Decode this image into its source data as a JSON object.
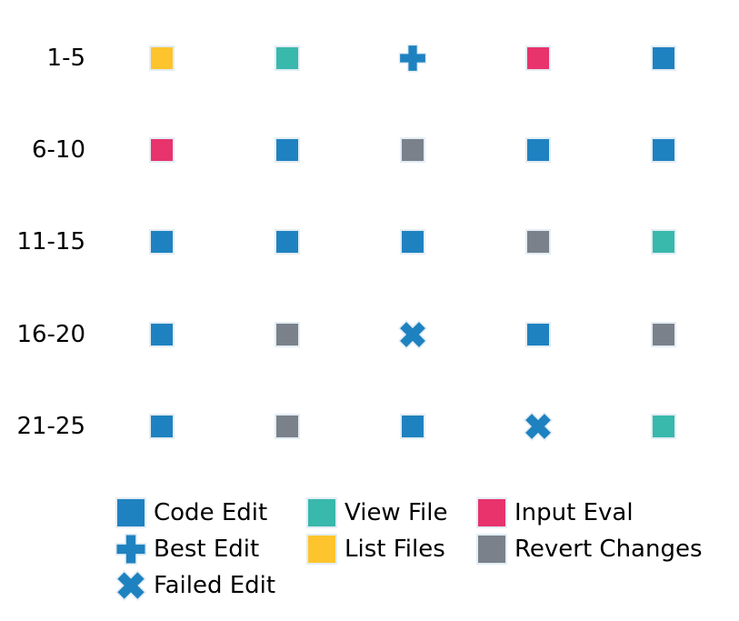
{
  "chart_data": {
    "type": "scatter",
    "title": "",
    "xlabel": "",
    "ylabel": "",
    "grid_lines": false,
    "background": "#ffffff",
    "rows": [
      "1-5",
      "6-10",
      "11-15",
      "16-20",
      "21-25"
    ],
    "columns_per_row": 5,
    "grid": [
      [
        "list_files",
        "view_file",
        "best_edit",
        "input_eval",
        "code_edit"
      ],
      [
        "input_eval",
        "code_edit",
        "revert_changes",
        "code_edit",
        "code_edit"
      ],
      [
        "code_edit",
        "code_edit",
        "code_edit",
        "revert_changes",
        "view_file"
      ],
      [
        "code_edit",
        "revert_changes",
        "failed_edit",
        "code_edit",
        "revert_changes"
      ],
      [
        "code_edit",
        "revert_changes",
        "code_edit",
        "failed_edit",
        "view_file"
      ]
    ],
    "markers": {
      "code_edit": {
        "label": "Code Edit",
        "shape": "square",
        "color": "#1f82c0"
      },
      "view_file": {
        "label": "View File",
        "shape": "square",
        "color": "#39b8ac"
      },
      "input_eval": {
        "label": "Input Eval",
        "shape": "square",
        "color": "#e8336d"
      },
      "best_edit": {
        "label": "Best Edit",
        "shape": "plus",
        "color": "#1f82c0"
      },
      "list_files": {
        "label": "List Files",
        "shape": "square",
        "color": "#fdc42d"
      },
      "revert_changes": {
        "label": "Revert Changes",
        "shape": "square",
        "color": "#7b818b"
      },
      "failed_edit": {
        "label": "Failed Edit",
        "shape": "x",
        "color": "#1f82c0"
      }
    },
    "marker_edge_color": "#e3edf4",
    "legend": {
      "position": "bottom",
      "ncol": 3,
      "order": [
        "code_edit",
        "view_file",
        "input_eval",
        "best_edit",
        "list_files",
        "revert_changes",
        "failed_edit"
      ]
    }
  }
}
